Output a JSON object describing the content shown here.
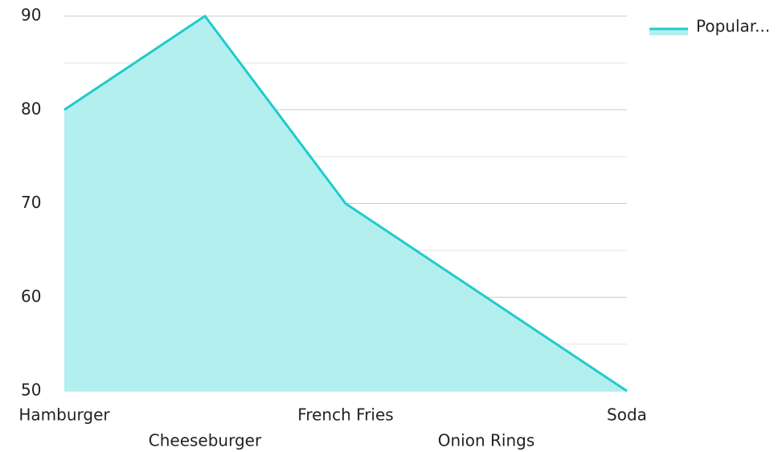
{
  "chart_data": {
    "type": "area",
    "categories": [
      "Hamburger",
      "Cheeseburger",
      "French Fries",
      "Onion Rings",
      "Soda"
    ],
    "series": [
      {
        "name": "Popular...",
        "color": "#1ecccc",
        "fill": "#b2efee",
        "values": [
          80,
          90,
          70,
          60,
          50
        ]
      }
    ],
    "ylim": [
      50,
      90
    ],
    "yticks": [
      50,
      60,
      70,
      80,
      90
    ],
    "minor_yticks": [
      55,
      65,
      75,
      85
    ],
    "grid": true,
    "legend": "top-right"
  }
}
